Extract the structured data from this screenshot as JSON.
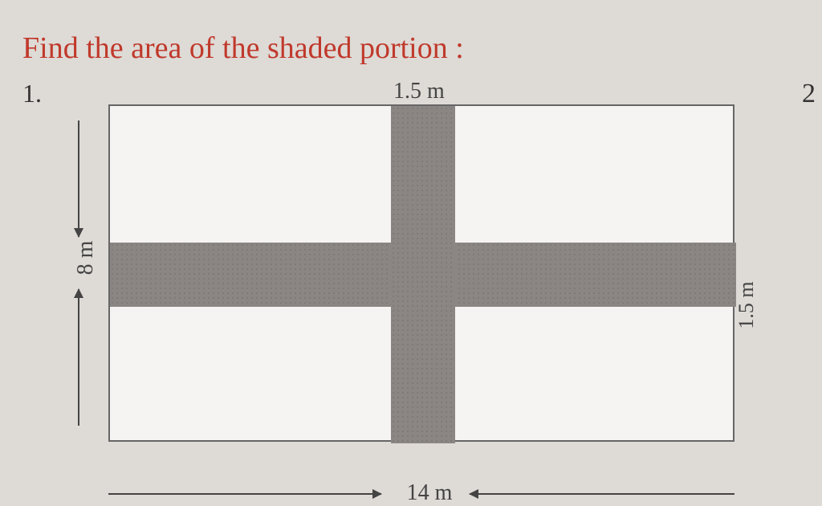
{
  "question": {
    "title": "Find the area of the shaded portion :",
    "title_color": "#c0392b",
    "title_fontsize": 38,
    "number": "1.",
    "number_fontsize": 32,
    "partial_next_number": "2"
  },
  "diagram": {
    "type": "infographic",
    "outer_rect": {
      "width_m": 14,
      "height_m": 8,
      "border_color": "#666666",
      "fill_color": "#f5f4f2"
    },
    "vertical_strip": {
      "width_m": 1.5,
      "fill_color": "#8b8683",
      "pattern": "dotted"
    },
    "horizontal_strip": {
      "height_m": 1.5,
      "fill_color": "#8b8683",
      "pattern": "dotted"
    },
    "labels": {
      "top": "1.5 m",
      "bottom": "14 m",
      "left": "8 m",
      "right": "1.5 m",
      "label_color": "#444444",
      "label_fontsize": 28
    },
    "background_color": "#dedad6"
  }
}
